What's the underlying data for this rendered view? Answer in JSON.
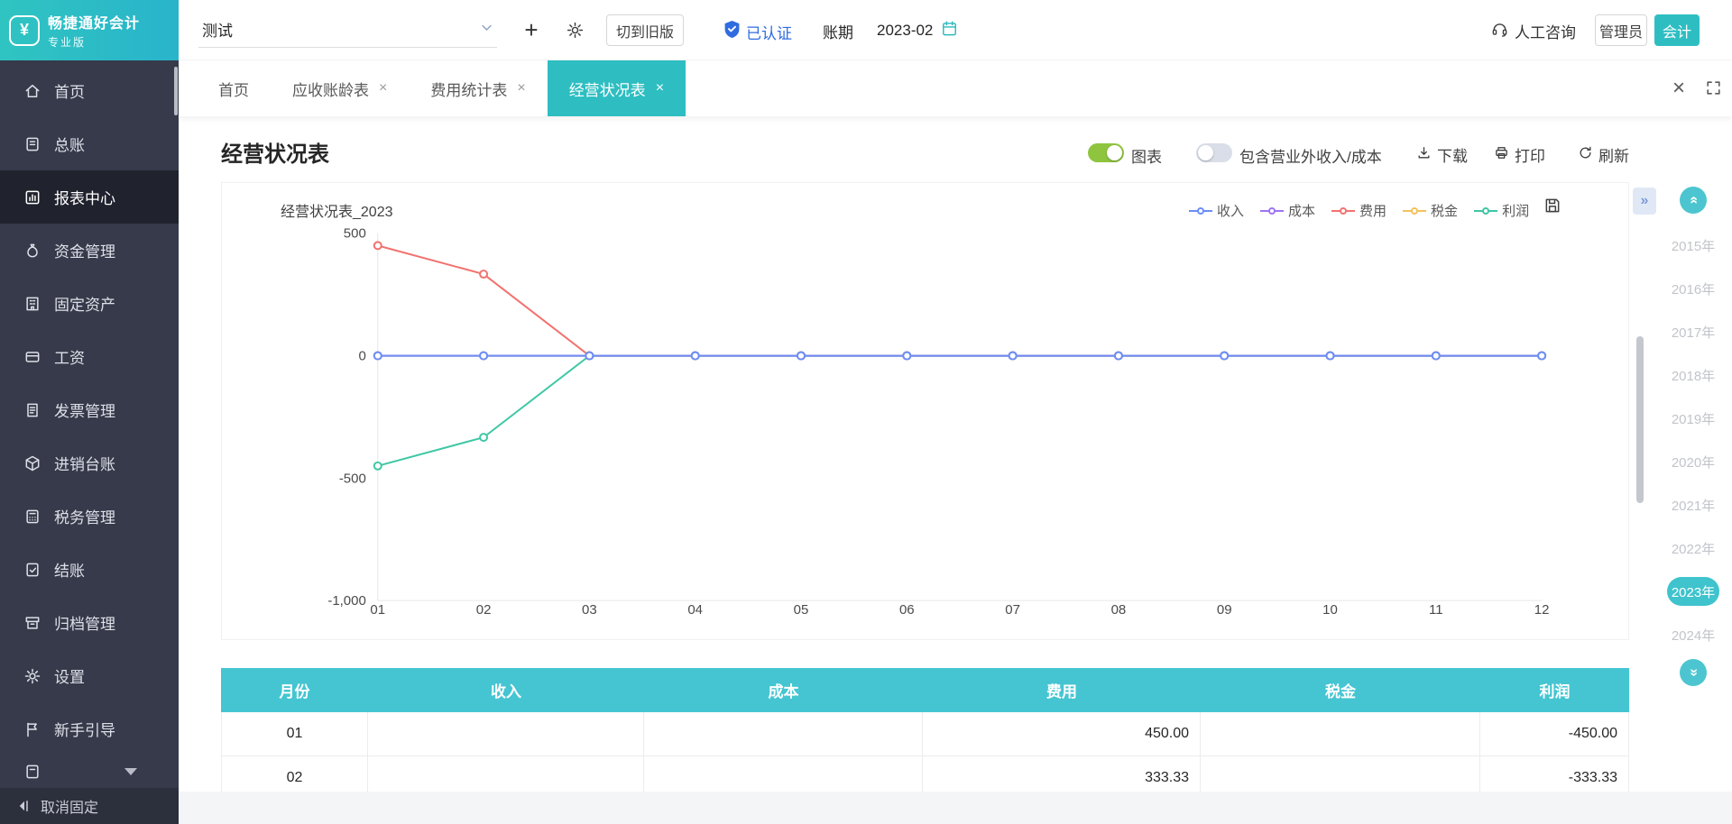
{
  "colors": {
    "accent": "#2ebec2",
    "table_header": "#45c5d2",
    "toggle_on": "#8fc43e",
    "year_pill": "#3fc3cd",
    "certified_blue": "#2f6ce0"
  },
  "sidebar": {
    "logo_title": "畅捷通好会计",
    "logo_subtitle": "专业版",
    "items": [
      {
        "label": "首页",
        "icon": "home-icon",
        "active": false
      },
      {
        "label": "总账",
        "icon": "ledger-icon",
        "active": false
      },
      {
        "label": "报表中心",
        "icon": "report-icon",
        "active": true
      },
      {
        "label": "资金管理",
        "icon": "fund-icon",
        "active": false
      },
      {
        "label": "固定资产",
        "icon": "asset-icon",
        "active": false
      },
      {
        "label": "工资",
        "icon": "salary-icon",
        "active": false
      },
      {
        "label": "发票管理",
        "icon": "invoice-icon",
        "active": false
      },
      {
        "label": "进销台账",
        "icon": "inventory-icon",
        "active": false
      },
      {
        "label": "税务管理",
        "icon": "tax-icon",
        "active": false
      },
      {
        "label": "结账",
        "icon": "closing-icon",
        "active": false
      },
      {
        "label": "归档管理",
        "icon": "archive-icon",
        "active": false
      },
      {
        "label": "设置",
        "icon": "settings-icon",
        "active": false
      },
      {
        "label": "新手引导",
        "icon": "guide-icon",
        "active": false
      }
    ],
    "unpin_label": "取消固定"
  },
  "topbar": {
    "company": "测试",
    "switch_old_label": "切到旧版",
    "certified_label": "已认证",
    "period_label": "账期",
    "period_value": "2023-02",
    "consult_label": "人工咨询",
    "admin_label": "管理员",
    "accountant_label": "会计"
  },
  "tabs": [
    {
      "label": "首页",
      "closable": false,
      "active": false
    },
    {
      "label": "应收账龄表",
      "closable": true,
      "active": false
    },
    {
      "label": "费用统计表",
      "closable": true,
      "active": false
    },
    {
      "label": "经营状况表",
      "closable": true,
      "active": true
    }
  ],
  "content": {
    "title": "经营状况表",
    "toggle_chart_label": "图表",
    "toggle_nonop_label": "包含营业外收入/成本",
    "download_label": "下载",
    "print_label": "打印",
    "refresh_label": "刷新"
  },
  "chart_data": {
    "type": "line",
    "title": "经营状况表_2023",
    "x": [
      "01",
      "02",
      "03",
      "04",
      "05",
      "06",
      "07",
      "08",
      "09",
      "10",
      "11",
      "12"
    ],
    "series": [
      {
        "name": "收入",
        "color": "#6b8ef5",
        "values": [
          0,
          0,
          0,
          0,
          0,
          0,
          0,
          0,
          0,
          0,
          0,
          0
        ]
      },
      {
        "name": "成本",
        "color": "#9d75f2",
        "values": [
          0,
          0,
          0,
          0,
          0,
          0,
          0,
          0,
          0,
          0,
          0,
          0
        ]
      },
      {
        "name": "费用",
        "color": "#f2726f",
        "values": [
          450,
          333.33,
          0,
          0,
          0,
          0,
          0,
          0,
          0,
          0,
          0,
          0
        ]
      },
      {
        "name": "税金",
        "color": "#f5c25c",
        "values": [
          0,
          0,
          0,
          0,
          0,
          0,
          0,
          0,
          0,
          0,
          0,
          0
        ]
      },
      {
        "name": "利润",
        "color": "#3ec7a5",
        "values": [
          -450,
          -333.33,
          0,
          0,
          0,
          0,
          0,
          0,
          0,
          0,
          0,
          0
        ]
      }
    ],
    "ylim": [
      -1000,
      500
    ],
    "yticks": [
      500,
      0,
      -500,
      -1000
    ],
    "legend_position": "top-right",
    "grid": false
  },
  "table": {
    "headers": [
      "月份",
      "收入",
      "成本",
      "费用",
      "税金",
      "利润"
    ],
    "rows": [
      [
        "01",
        "",
        "",
        "450.00",
        "",
        "-450.00"
      ],
      [
        "02",
        "",
        "",
        "333.33",
        "",
        "-333.33"
      ]
    ]
  },
  "year_rail": {
    "years": [
      "2015年",
      "2016年",
      "2017年",
      "2018年",
      "2019年",
      "2020年",
      "2021年",
      "2022年",
      "2023年",
      "2024年"
    ],
    "active": "2023年"
  }
}
